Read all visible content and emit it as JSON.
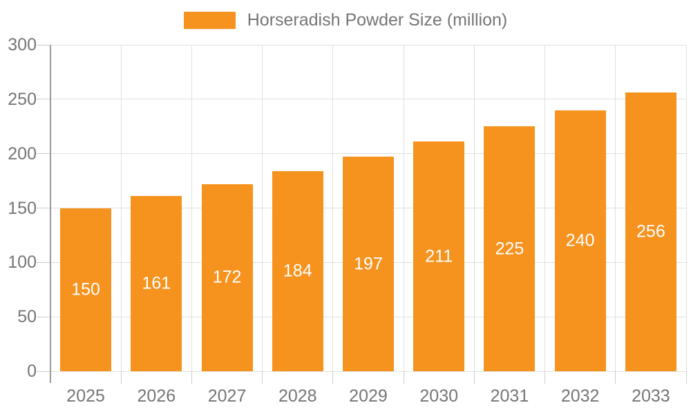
{
  "chart_data": {
    "type": "bar",
    "title": "Horseradish Powder Size (million)",
    "categories": [
      "2025",
      "2026",
      "2027",
      "2028",
      "2029",
      "2030",
      "2031",
      "2032",
      "2033"
    ],
    "values": [
      150,
      161,
      172,
      184,
      197,
      211,
      225,
      240,
      256
    ],
    "xlabel": "",
    "ylabel": "",
    "ylim": [
      0,
      300
    ],
    "yticks": [
      0,
      50,
      100,
      150,
      200,
      250,
      300
    ],
    "grid": true,
    "legend_position": "top",
    "value_label_position": "inside-center"
  },
  "legend": {
    "label": "Horseradish Powder Size (million)"
  },
  "colors": {
    "bar": "#F6931F",
    "value_label": "#FFFFFF",
    "axis_line": "#999999",
    "tick": "#CCCCCC",
    "gridline": "#E0E0E0",
    "axis_label": "#757575",
    "legend_text": "#757575",
    "background": "#FFFFFF"
  }
}
